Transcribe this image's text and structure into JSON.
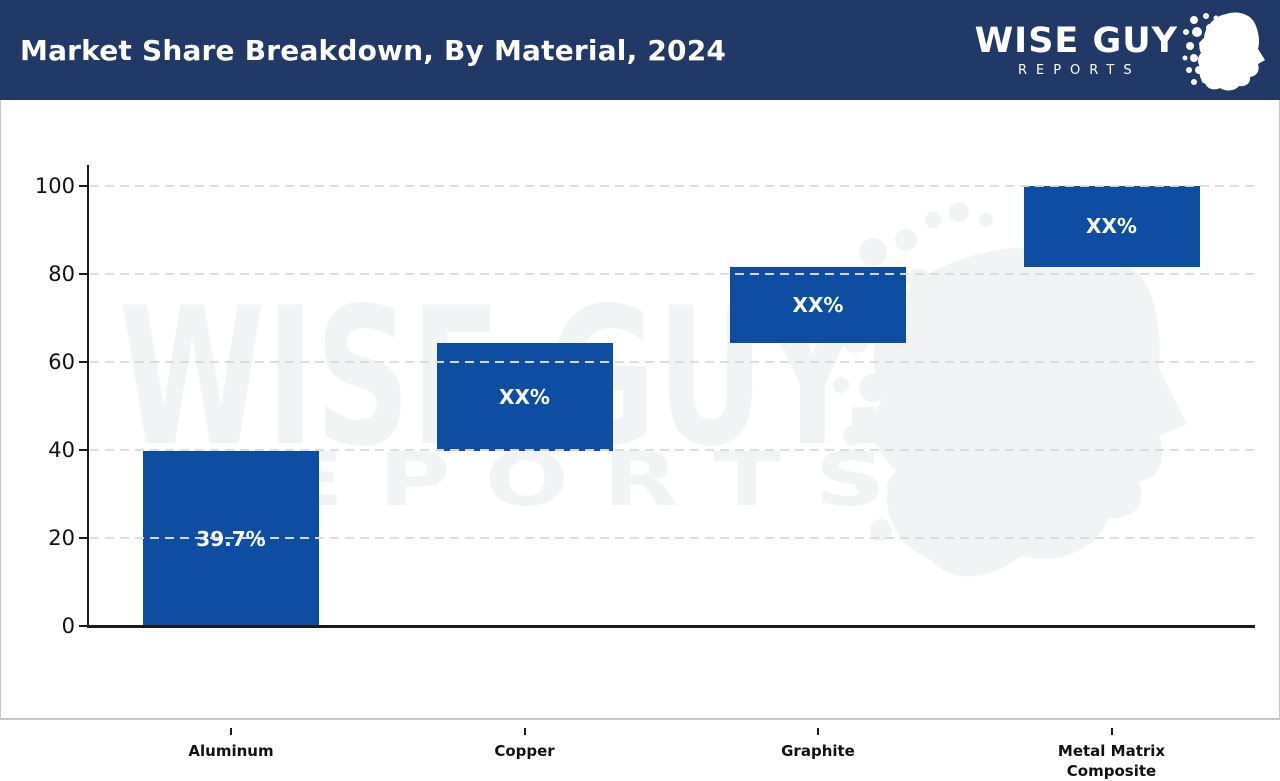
{
  "header": {
    "title": "Market Share Breakdown, By Material, 2024",
    "logo": {
      "line1": "WISE GUY",
      "line2": "REPORTS"
    }
  },
  "watermark": {
    "line1": "WISE GUY.",
    "line2": "R E P O R T S"
  },
  "colors": {
    "header_bg": "#213966",
    "bar": "#0d4da2",
    "gridline": "#dcdcdc",
    "axis": "#1a1a1a",
    "watermark": "#f2f3f5",
    "border": "#c8c8c8",
    "bar_label_text": "#ffffff"
  },
  "chart_data": {
    "type": "bar",
    "subtype": "waterfall",
    "title": "Market Share Breakdown, By Material, 2024",
    "categories": [
      "Aluminum",
      "Copper",
      "Graphite",
      "Metal Matrix Composite"
    ],
    "series": [
      {
        "name": "Market share (%)",
        "segments": [
          {
            "category": "Aluminum",
            "start": 0,
            "end": 39.7,
            "label": "39.7%"
          },
          {
            "category": "Copper",
            "start": 39.7,
            "end": 64.3,
            "label": "XX%"
          },
          {
            "category": "Graphite",
            "start": 64.3,
            "end": 81.7,
            "label": "XX%"
          },
          {
            "category": "Metal Matrix Composite",
            "start": 81.7,
            "end": 100,
            "label": "XX%"
          }
        ]
      }
    ],
    "ylim": [
      0,
      100
    ],
    "yticks": [
      0,
      20,
      40,
      60,
      80,
      100
    ],
    "xlabel": "",
    "ylabel": "",
    "grid": "horizontal-dashed",
    "legend": "none"
  }
}
